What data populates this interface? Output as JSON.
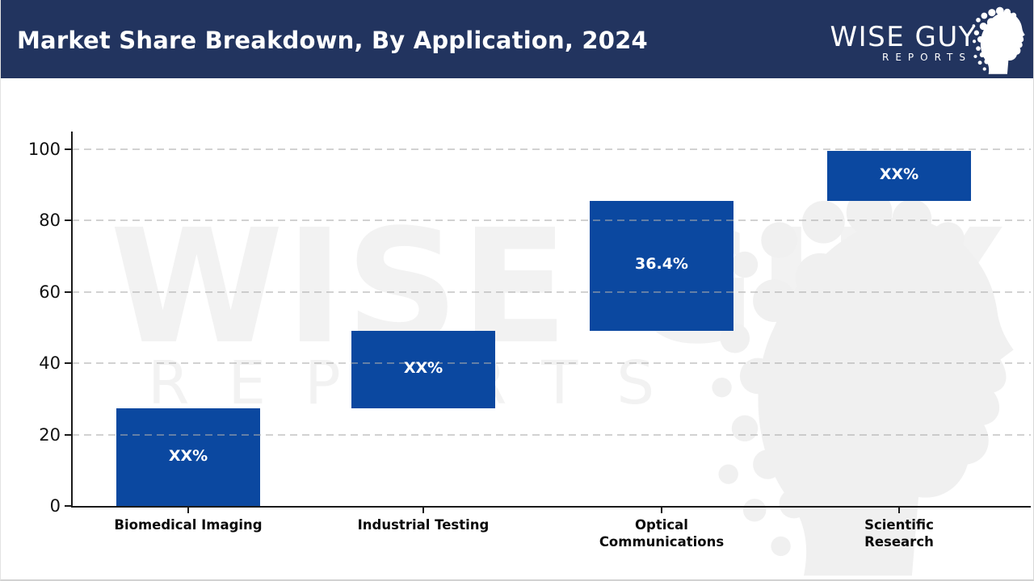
{
  "header": {
    "title": "Market Share Breakdown, By Application, 2024",
    "brand_name": "WISE GUY",
    "brand_sub": "REPORTS"
  },
  "watermark": {
    "line1": "WISE GUY",
    "line2": "REPORTS"
  },
  "colors": {
    "header_bg": "#22345f",
    "bar": "#0b48a0",
    "watermark": "#f2f2f2",
    "logo_white": "#ffffff"
  },
  "chart_data": {
    "type": "bar",
    "subtype": "waterfall",
    "title": "Market Share Breakdown, By Application, 2024",
    "categories": [
      "Biomedical Imaging",
      "Industrial Testing",
      "Optical Communications",
      "Scientific Research"
    ],
    "category_label_lines": [
      [
        "Biomedical Imaging"
      ],
      [
        "Industrial Testing"
      ],
      [
        "Optical",
        "Communications"
      ],
      [
        "Scientific",
        "Research"
      ]
    ],
    "segments": [
      {
        "category": "Biomedical Imaging",
        "start": 0,
        "end": 27.3,
        "label": "XX%"
      },
      {
        "category": "Industrial Testing",
        "start": 27.3,
        "end": 49.2,
        "label": "XX%"
      },
      {
        "category": "Optical Communications",
        "start": 49.2,
        "end": 85.6,
        "label": "36.4%"
      },
      {
        "category": "Scientific Research",
        "start": 85.6,
        "end": 99.6,
        "label": "XX%"
      }
    ],
    "xlabel": "",
    "ylabel": "",
    "yticks": [
      0,
      20,
      40,
      60,
      80,
      100
    ],
    "ylim": [
      0,
      105
    ],
    "grid": "horizontal-dashed",
    "legend": null
  }
}
